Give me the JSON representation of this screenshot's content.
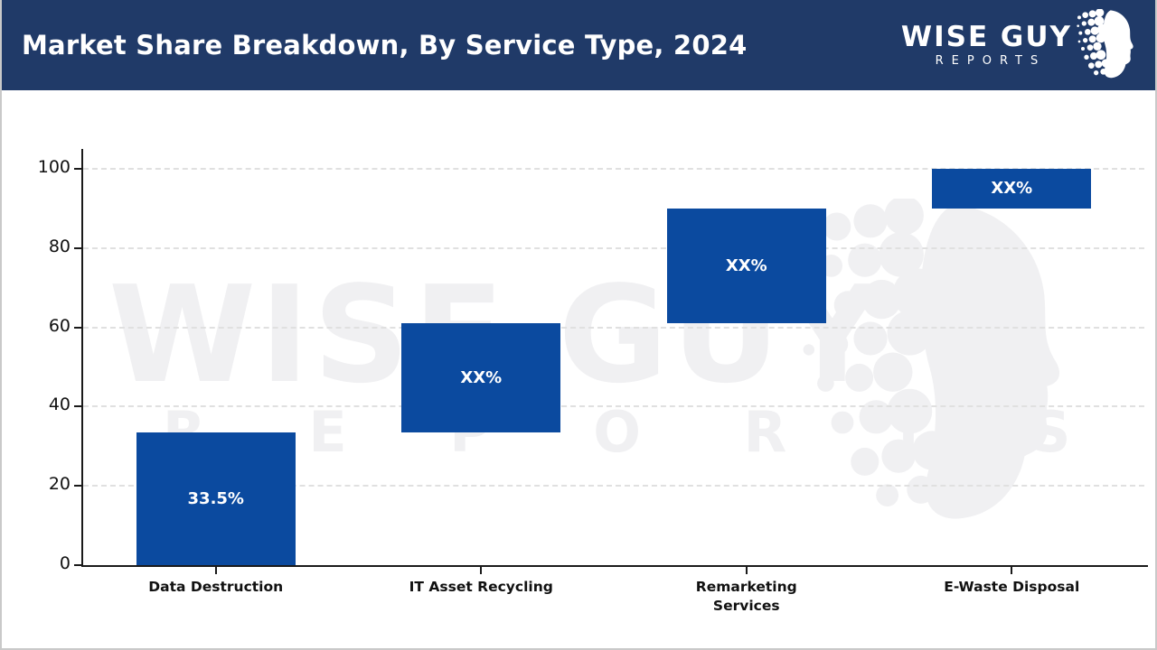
{
  "header": {
    "title": "Market Share Breakdown, By Service Type, 2024",
    "logo": {
      "wordmark": "WISE GUY",
      "subtext": "REPORTS"
    }
  },
  "watermark": {
    "line1": "WISE GUY",
    "line2": "R E P O R T S"
  },
  "icons": {
    "logo_face": "dotted-head-profile",
    "watermark_face": "dotted-head-profile"
  },
  "colors": {
    "header_bg": "#203a68",
    "bar": "#0b4a9f",
    "grid": "#e0e0e0",
    "axis": "#1a1a1a",
    "watermark": "#f0f0f2"
  },
  "chart_data": {
    "type": "bar",
    "variant": "waterfall",
    "title": "Market Share Breakdown, By Service Type, 2024",
    "categories": [
      "Data Destruction",
      "IT Asset Recycling",
      "Remarketing\nServices",
      "E-Waste Disposal"
    ],
    "segments": [
      {
        "category": "Data Destruction",
        "label": "33.5%",
        "start": 0,
        "end": 33.5,
        "value": 33.5
      },
      {
        "category": "IT Asset Recycling",
        "label": "XX%",
        "start": 33.5,
        "end": 61,
        "value": 27.5
      },
      {
        "category": "Remarketing Services",
        "label": "XX%",
        "start": 61,
        "end": 90,
        "value": 29
      },
      {
        "category": "E-Waste Disposal",
        "label": "XX%",
        "start": 90,
        "end": 100,
        "value": 10
      }
    ],
    "y_ticks": [
      0,
      20,
      40,
      60,
      80,
      100
    ],
    "ylim": [
      0,
      105
    ],
    "xlabel": "",
    "ylabel": "",
    "grid": true,
    "legend": false
  }
}
